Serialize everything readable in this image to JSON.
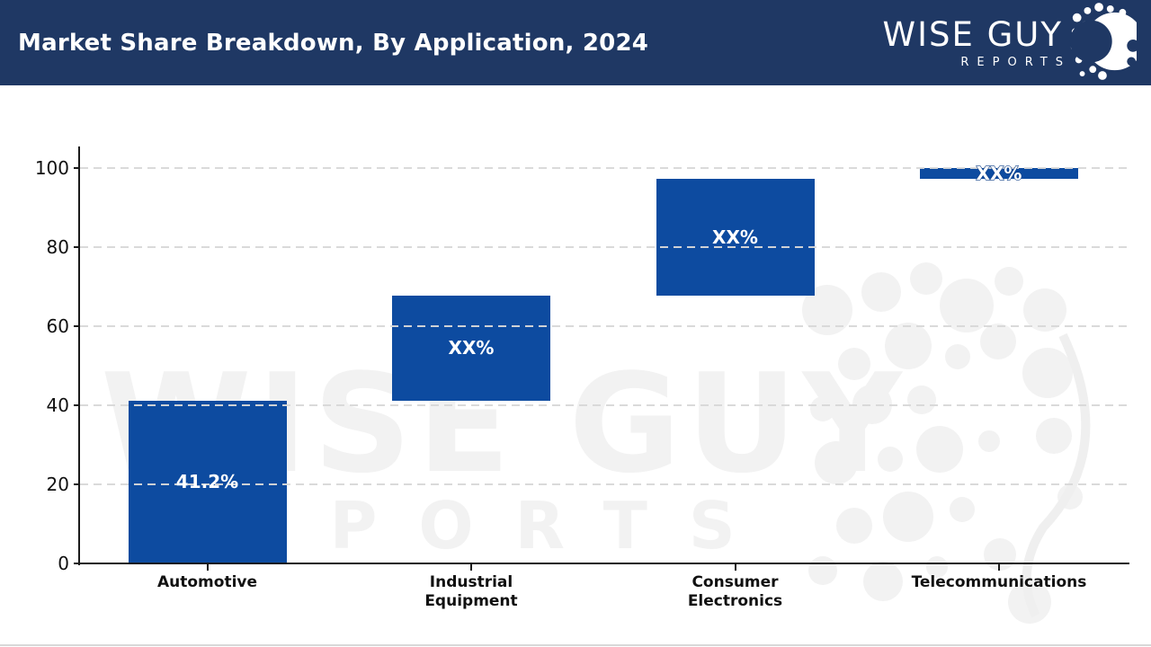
{
  "header": {
    "title": "Market Share Breakdown, By Application, 2024",
    "logo": {
      "name": "WISE GUY",
      "sub": "REPORTS"
    }
  },
  "watermark": {
    "line1": "WISE GUY",
    "line2": "REPORTS"
  },
  "chart_data": {
    "type": "bar",
    "variant": "waterfall",
    "title": "Market Share Breakdown, By Application, 2024",
    "categories": [
      "Automotive",
      "Industrial\nEquipment",
      "Consumer\nElectronics",
      "Telecommunications"
    ],
    "segments": [
      {
        "category": "Automotive",
        "label": "41.2%",
        "start": 0,
        "end": 41.2
      },
      {
        "category": "Industrial Equipment",
        "label": "XX%",
        "start": 41.2,
        "end": 67.8
      },
      {
        "category": "Consumer Electronics",
        "label": "XX%",
        "start": 67.8,
        "end": 97.3
      },
      {
        "category": "Telecommunications",
        "label": "XX%",
        "start": 97.3,
        "end": 100
      }
    ],
    "yticks": [
      0,
      20,
      40,
      60,
      80,
      100
    ],
    "ylim": [
      0,
      105
    ],
    "xlabel": "",
    "ylabel": "",
    "grid": "dashed-horizontal",
    "legend": "none",
    "bar_color": "#0d4ba0",
    "bar_label_color": "#ffffff"
  },
  "colors": {
    "header_bg": "#1f3864",
    "axis": "#1a1a1a",
    "grid": "#d8d8d8",
    "watermark": "#f2f2f2"
  }
}
